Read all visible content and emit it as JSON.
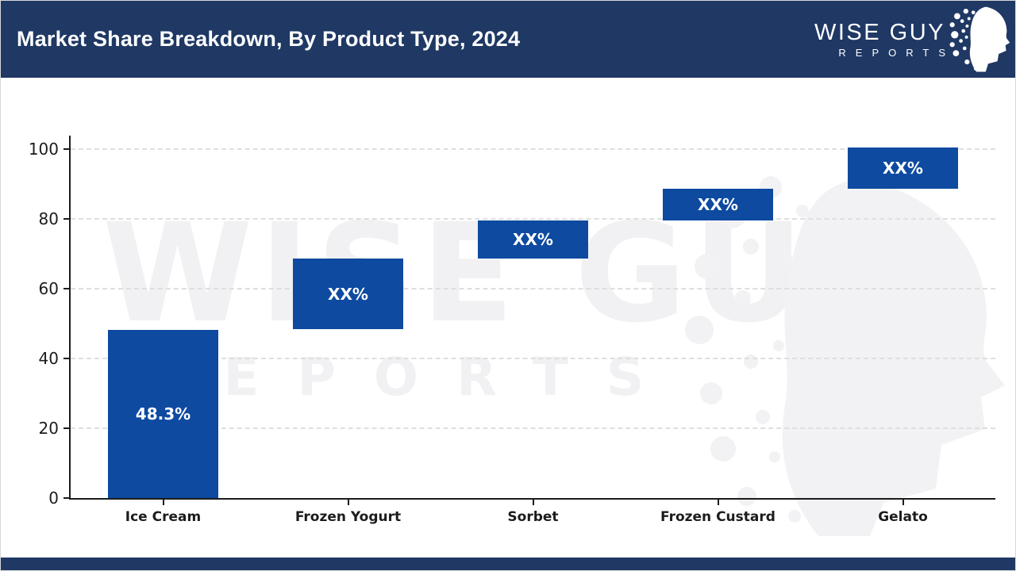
{
  "header": {
    "title": "Market Share Breakdown, By Product Type, 2024",
    "logo": {
      "wordmark": "WISE GUY",
      "subtitle": "REPORTS"
    }
  },
  "watermark": {
    "wordmark": "WISE GUY",
    "subtitle": "REPORTS"
  },
  "chart_data": {
    "type": "bar",
    "variant": "waterfall",
    "title": "Market Share Breakdown, By Product Type, 2024",
    "categories": [
      "Ice Cream",
      "Frozen Yogurt",
      "Sorbet",
      "Frozen Custard",
      "Gelato"
    ],
    "segments": [
      {
        "category": "Ice Cream",
        "start": 0,
        "end": 48.3,
        "label": "48.3%"
      },
      {
        "category": "Frozen Yogurt",
        "start": 48.3,
        "end": 68.6,
        "label": "XX%"
      },
      {
        "category": "Sorbet",
        "start": 68.6,
        "end": 79.5,
        "label": "XX%"
      },
      {
        "category": "Frozen Custard",
        "start": 79.5,
        "end": 88.6,
        "label": "XX%"
      },
      {
        "category": "Gelato",
        "start": 88.6,
        "end": 100.4,
        "label": "XX%"
      }
    ],
    "xlabel": "",
    "ylabel": "",
    "yticks": [
      0,
      20,
      40,
      60,
      80,
      100
    ],
    "ylim": [
      0,
      104
    ],
    "grid": true,
    "grid_style": "dashed",
    "legend": "none",
    "bar_color": "#0d4aa0",
    "bar_label_color": "#ffffff"
  },
  "colors": {
    "header_bg": "#1f3864",
    "footer_bg": "#1f3864",
    "title_text": "#ffffff",
    "bar": "#0d4aa0",
    "axis": "#1c1c1c",
    "gridline": "#dedede",
    "tick_text": "#1c1c1c",
    "watermark": "#f1f1f3",
    "page_border": "#d9d9d9"
  }
}
